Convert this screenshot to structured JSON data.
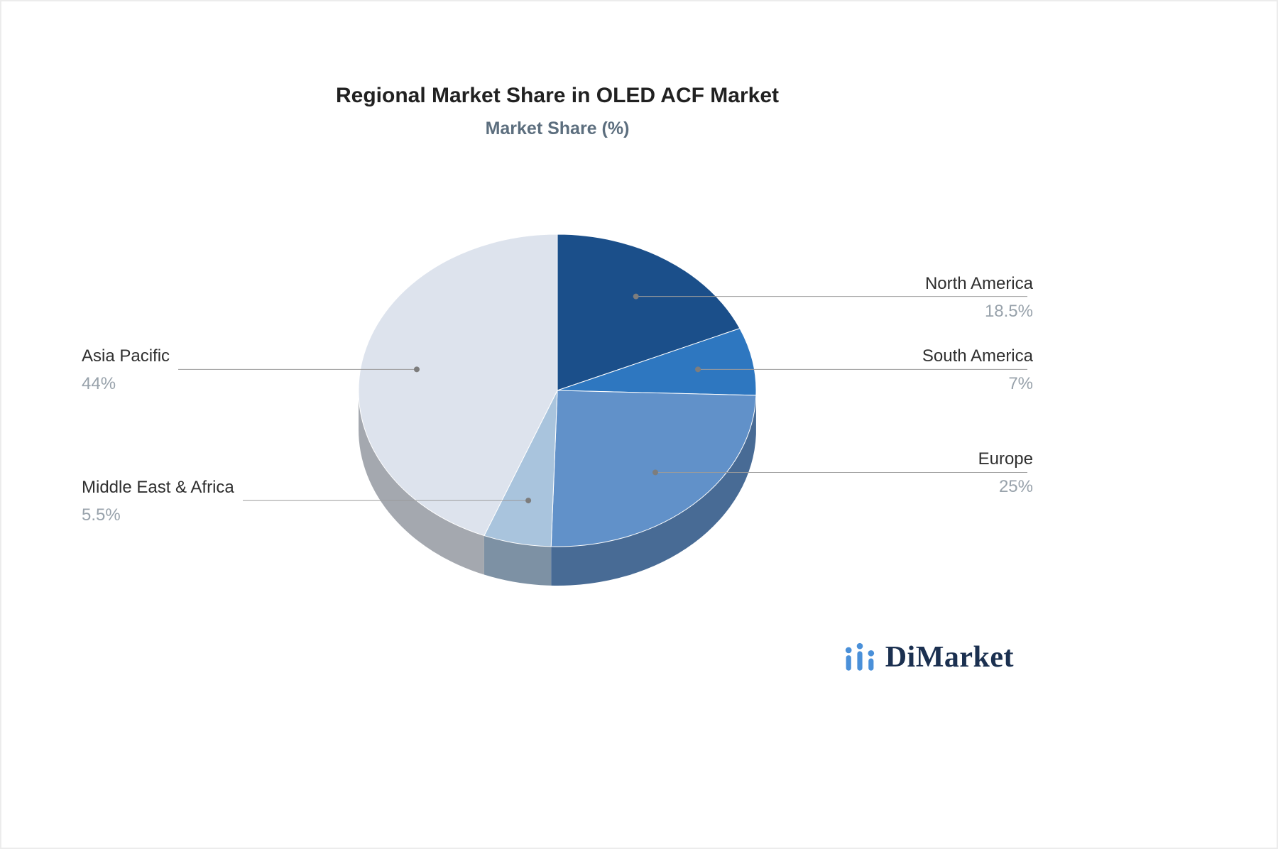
{
  "logo": {
    "text": "DiMarket"
  },
  "chart_data": {
    "type": "pie",
    "title": "Regional Market Share in OLED ACF Market",
    "subtitle": "Market Share (%)",
    "unit": "%",
    "legend_position": "none",
    "style": "3d-pie",
    "slices": [
      {
        "label": "North America",
        "value": 18.5,
        "display": "18.5%",
        "color": "#1b4f8a"
      },
      {
        "label": "South America",
        "value": 7,
        "display": "7%",
        "color": "#2e77c0"
      },
      {
        "label": "Europe",
        "value": 25,
        "display": "25%",
        "color": "#6191c9"
      },
      {
        "label": "Middle East & Africa",
        "value": 5.5,
        "display": "5.5%",
        "color": "#a9c4dd"
      },
      {
        "label": "Asia Pacific",
        "value": 44,
        "display": "44%",
        "color": "#dde3ed"
      }
    ],
    "start_angle_deg": -90,
    "direction": "clockwise",
    "connector_color": "#9b9b9b",
    "dot_color": "#7d7d7d",
    "label_name_color": "#2f2f2f",
    "label_value_color": "#98a2ab"
  }
}
